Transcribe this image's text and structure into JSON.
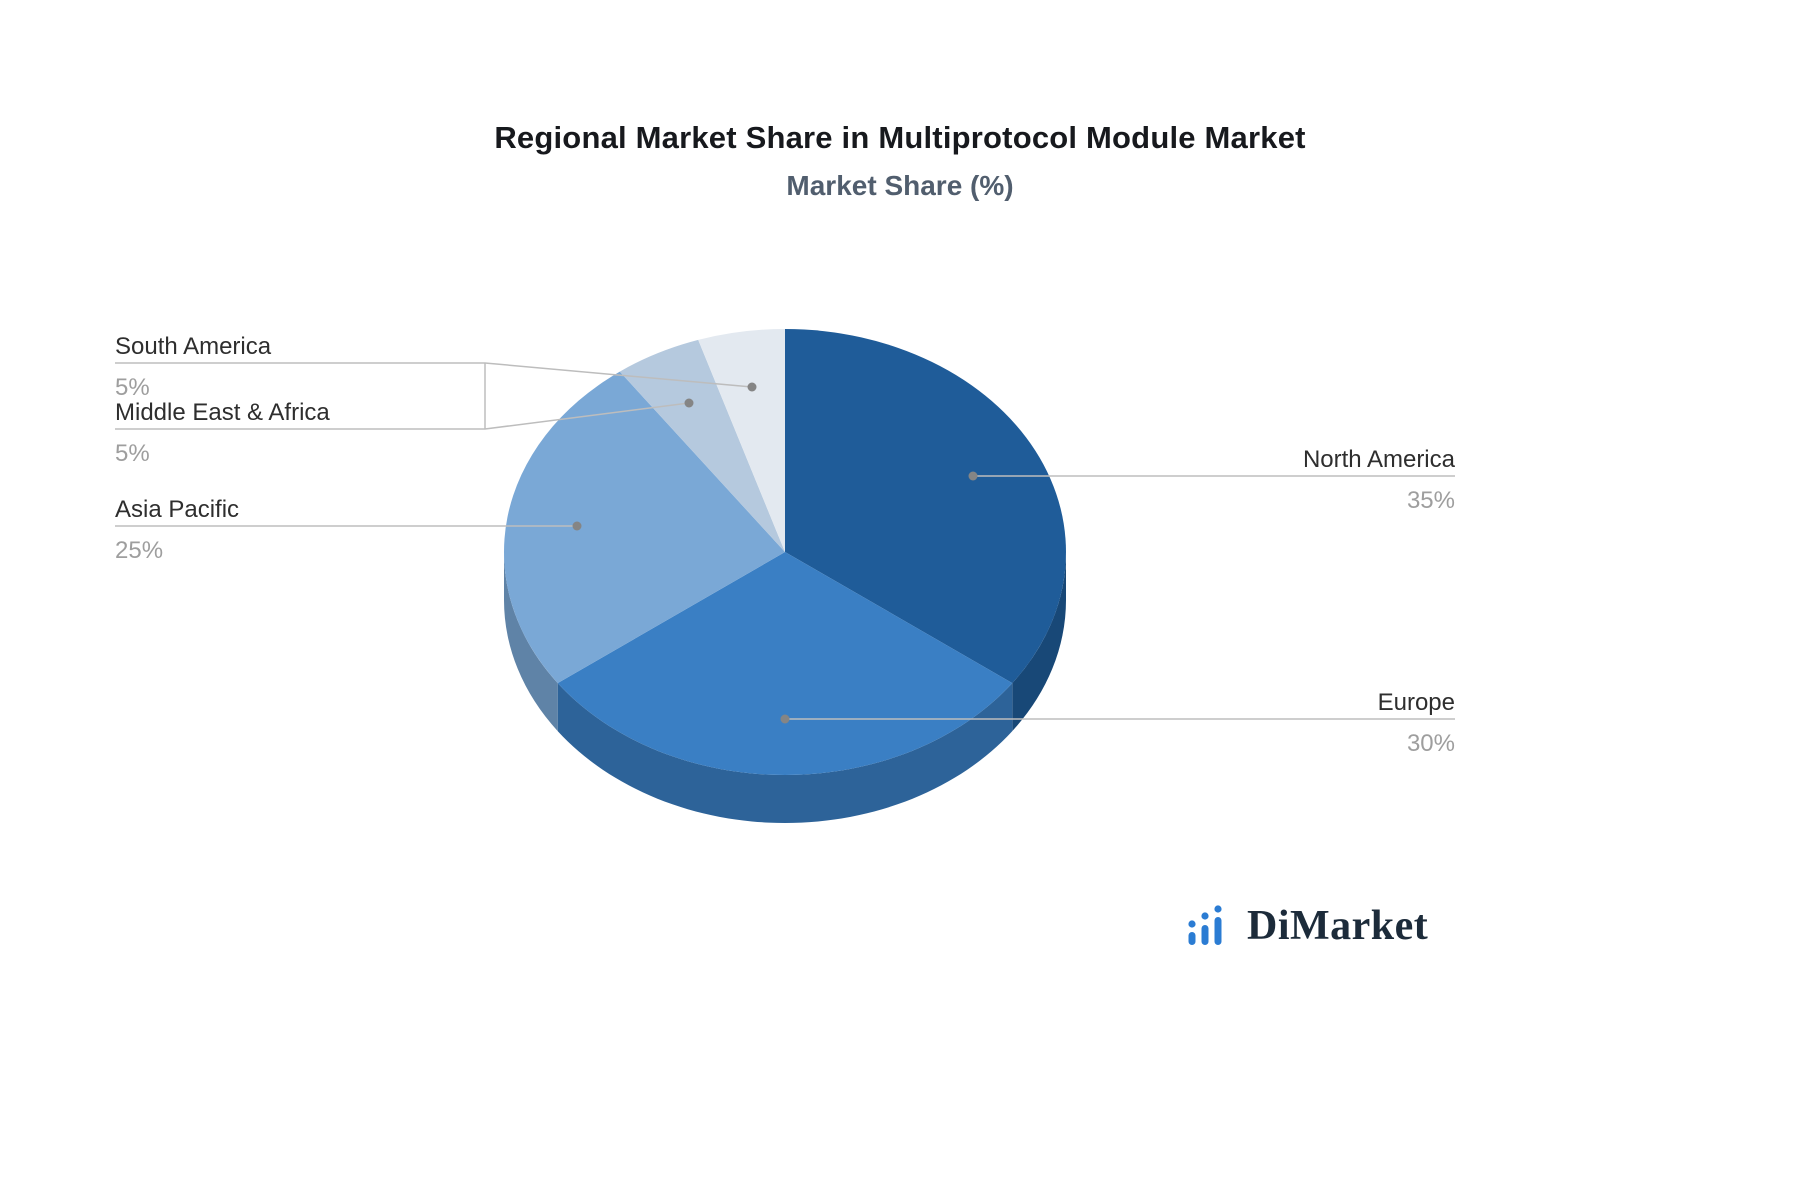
{
  "chart_data": {
    "type": "pie",
    "style": "3d",
    "title": "Regional Market Share in Multiprotocol Module Market",
    "subtitle": "Market Share (%)",
    "unit": "%",
    "legend_position": "none",
    "start_angle": "top",
    "direction": "clockwise",
    "categories": [
      "North America",
      "Europe",
      "Asia Pacific",
      "Middle East & Africa",
      "South America"
    ],
    "values": [
      35,
      30,
      25,
      5,
      5
    ],
    "slices": [
      {
        "label": "North America",
        "value": 35,
        "display": "35%",
        "color": "#1f5c99"
      },
      {
        "label": "Europe",
        "value": 30,
        "display": "30%",
        "color": "#3a7fc4"
      },
      {
        "label": "Asia Pacific",
        "value": 25,
        "display": "25%",
        "color": "#7aa8d6"
      },
      {
        "label": "Middle East & Africa",
        "value": 5,
        "display": "5%",
        "color": "#b5c9de"
      },
      {
        "label": "South America",
        "value": 5,
        "display": "5%",
        "color": "#e3e9f0"
      }
    ]
  },
  "logo": {
    "text": "DiMarket",
    "text_color": "#1c2b3a",
    "icon_color": "#2b7cd3"
  },
  "colors": {
    "title_text": "#17191d",
    "subtitle_text": "#515e6e",
    "label_text": "#2e2e2e",
    "value_text": "#9e9e9e",
    "leader_line": "#bdbdbd",
    "leader_dot": "#858585"
  }
}
